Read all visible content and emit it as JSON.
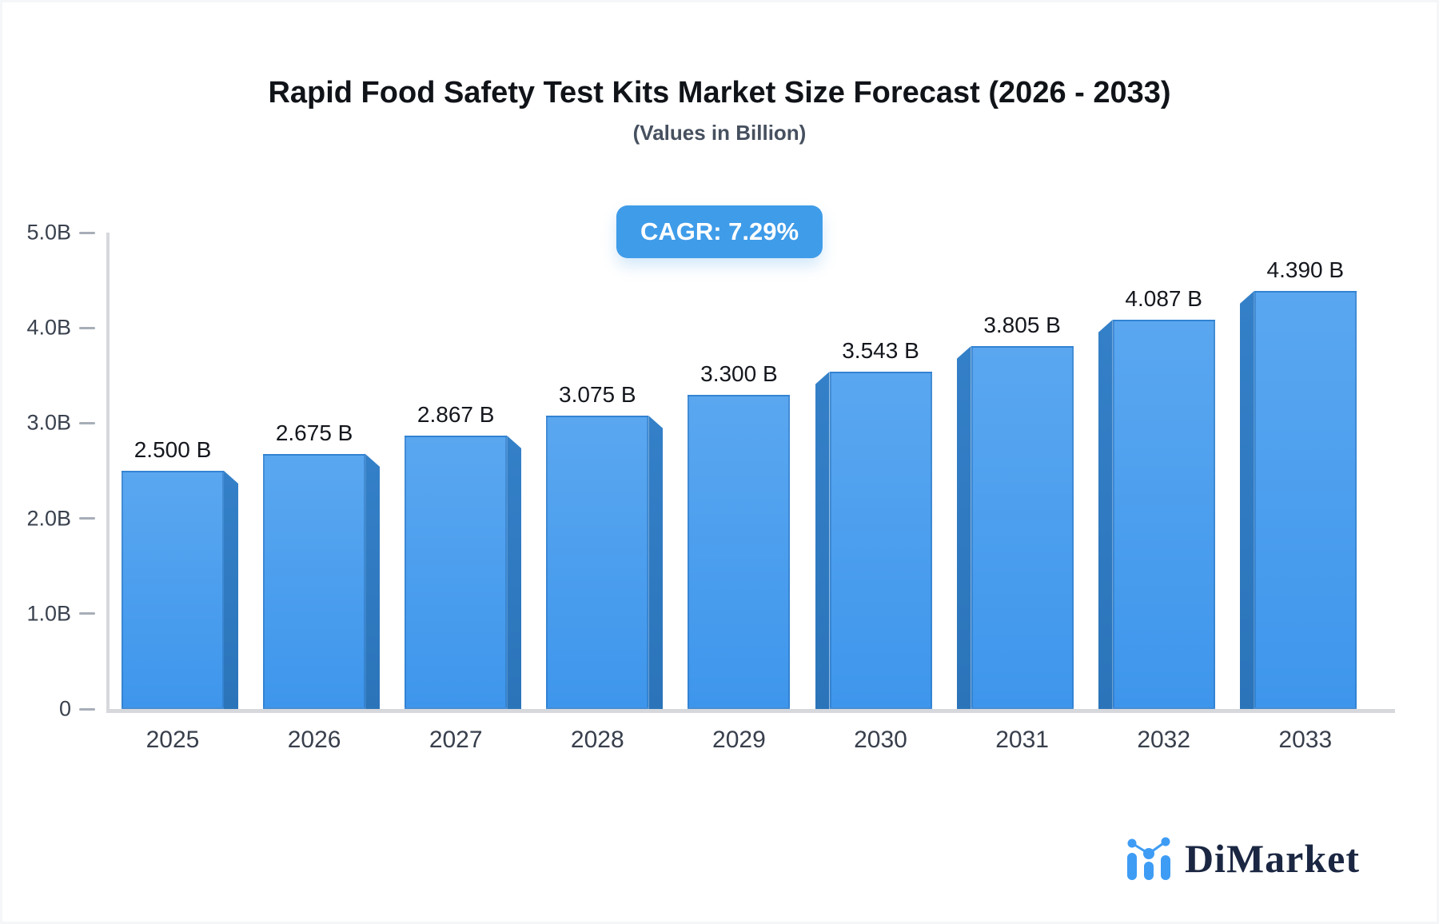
{
  "header": {
    "title": "Rapid Food Safety Test Kits Market Size Forecast (2026 - 2033)",
    "subtitle": "(Values in Billion)"
  },
  "badge": {
    "label": "CAGR: 7.29%",
    "color": "#3F9CE9"
  },
  "brand": {
    "name": "DiMarket",
    "icon": "bar-chart-logo-icon",
    "icon_color": "#3E9CF4",
    "text_color": "#1B2742"
  },
  "chart_data": {
    "type": "bar",
    "title": "Rapid Food Safety Test Kits Market Size Forecast (2026 - 2033)",
    "subtitle": "(Values in Billion)",
    "categories": [
      "2025",
      "2026",
      "2027",
      "2028",
      "2029",
      "2030",
      "2031",
      "2032",
      "2033"
    ],
    "values": [
      2.5,
      2.675,
      2.867,
      3.075,
      3.3,
      3.543,
      3.805,
      4.087,
      4.39
    ],
    "bar_labels": [
      "2.500 B",
      "2.675 B",
      "2.867 B",
      "3.075 B",
      "3.300 B",
      "3.543 B",
      "3.805 B",
      "4.087 B",
      "4.390 B"
    ],
    "xlabel": "",
    "ylabel": "",
    "ylim": [
      0,
      5
    ],
    "yticks": [
      {
        "label": "0",
        "value": 0
      },
      {
        "label": "1.0B",
        "value": 1
      },
      {
        "label": "2.0B",
        "value": 2
      },
      {
        "label": "3.0B",
        "value": 3
      },
      {
        "label": "4.0B",
        "value": 4
      },
      {
        "label": "5.0B",
        "value": 5
      }
    ],
    "grid": false,
    "legend": null,
    "bar_color": "#3F9AED",
    "bar_side_color": "#2E79C0",
    "style": "3d-bars, center-perspective (left bars shaded right, right bars shaded left)"
  }
}
